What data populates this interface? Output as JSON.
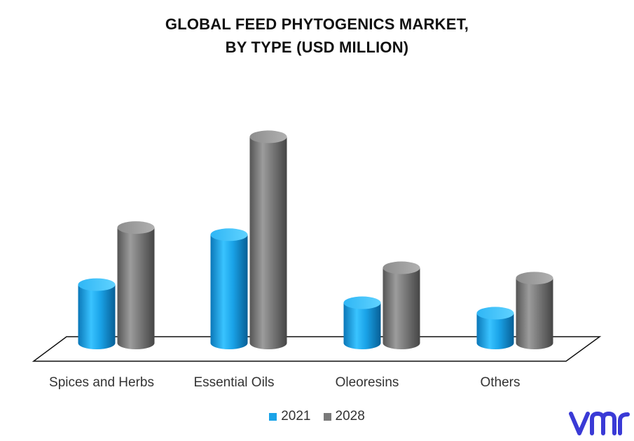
{
  "chart_data": {
    "type": "bar",
    "title_lines": [
      "GLOBAL FEED PHYTOGENICS MARKET,",
      "BY TYPE (USD MILLION)"
    ],
    "categories": [
      "Spices and Herbs",
      "Essential Oils",
      "Oleoresins",
      "Others"
    ],
    "series": [
      {
        "name": "2021",
        "values": [
          90,
          167,
          62,
          46
        ],
        "color": "#1aa3e8"
      },
      {
        "name": "2028",
        "values": [
          178,
          318,
          116,
          100
        ],
        "color": "#7a7a7a"
      }
    ],
    "ylim": [
      0,
      340
    ],
    "grid": false,
    "legend_position": "bottom-center",
    "style": "3d-cylinders"
  },
  "logo": {
    "text": "vmr",
    "color": "#3a3ad6"
  }
}
